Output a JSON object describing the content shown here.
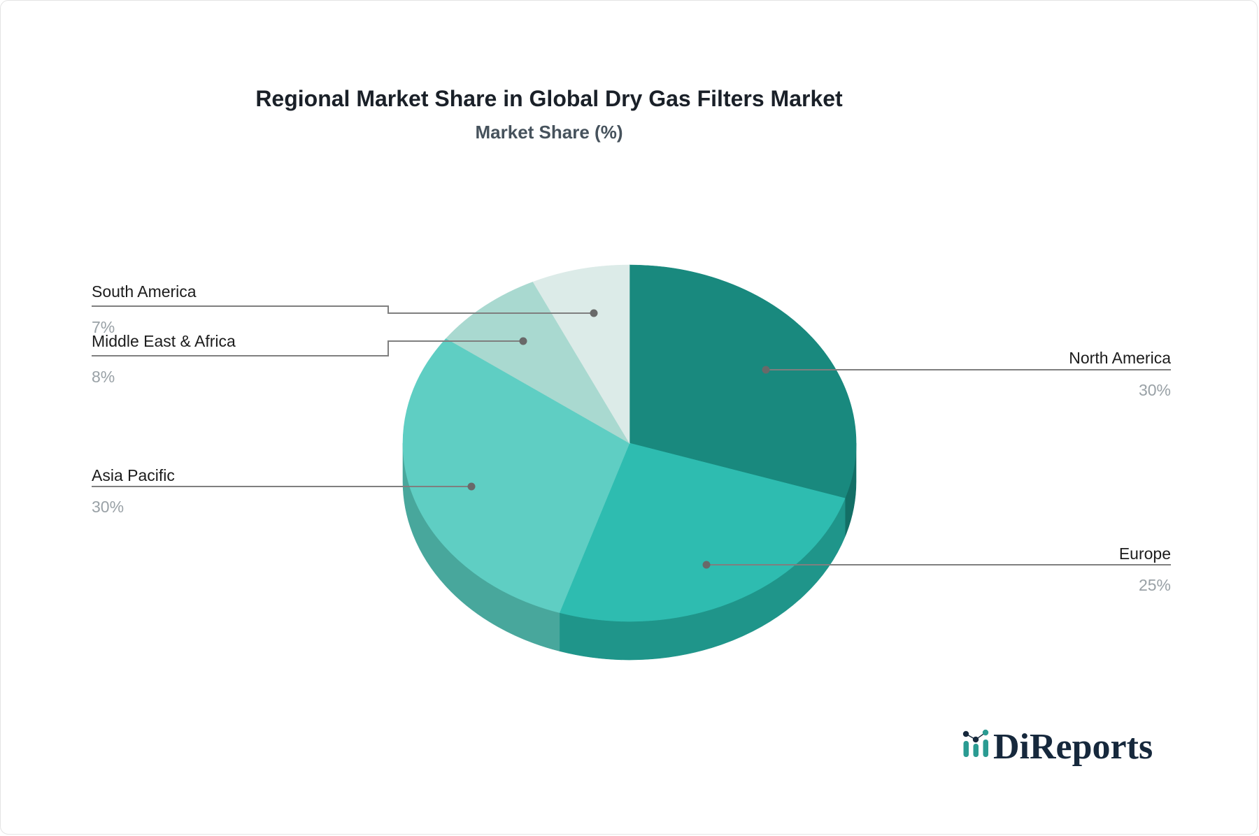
{
  "title": "Regional Market Share in Global Dry Gas Filters Market",
  "subtitle": "Market Share (%)",
  "logo": {
    "text": "DiReports",
    "icon": "bar-chart-with-trend-dots-icon",
    "accent_color": "#2a9b92",
    "text_color": "#16283c"
  },
  "palette": {
    "background": "#ffffff",
    "leader_line": "#7f7f7f",
    "label_text": "#1c1c1c",
    "percent_text": "#99a1a6",
    "title_text": "#1a2028",
    "subtitle_text": "#46525c"
  },
  "chart_data": {
    "type": "pie",
    "title": "Regional Market Share in Global Dry Gas Filters Market",
    "subtitle": "Market Share (%)",
    "unit": "%",
    "style": "3d-pie",
    "start_angle_deg": 0,
    "clockwise": true,
    "legend_position": "none",
    "slices": [
      {
        "label": "North America",
        "value": 30,
        "pct_label": "30%",
        "color": "#19897e",
        "side_color": "#136f66"
      },
      {
        "label": "Europe",
        "value": 25,
        "pct_label": "25%",
        "color": "#2ebcb0",
        "side_color": "#1f958a"
      },
      {
        "label": "Asia Pacific",
        "value": 30,
        "pct_label": "30%",
        "color": "#5fcec3",
        "side_color": "#48a79c"
      },
      {
        "label": "Middle East & Africa",
        "value": 8,
        "pct_label": "8%",
        "color": "#a9d9d0",
        "side_color": "#86b3ab"
      },
      {
        "label": "South America",
        "value": 7,
        "pct_label": "7%",
        "color": "#dcebe8",
        "side_color": "#b5c6c2"
      }
    ]
  }
}
